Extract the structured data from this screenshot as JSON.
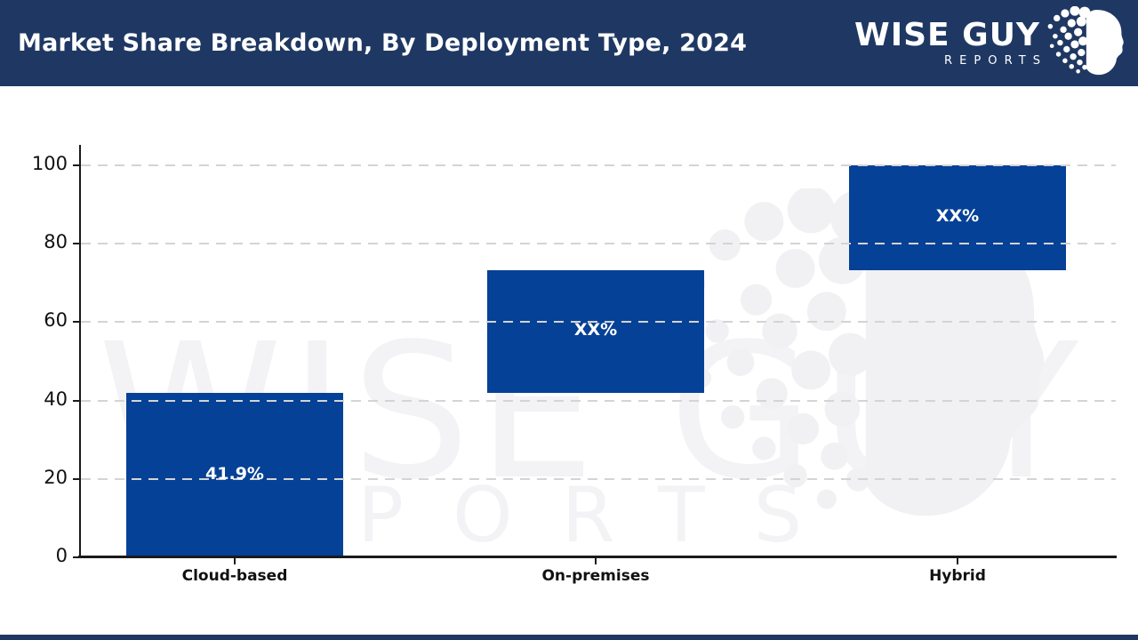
{
  "header": {
    "title": "Market Share Breakdown, By Deployment Type, 2024",
    "bg_color": "#1f3863",
    "logo": {
      "line1": "WISE GUY",
      "line2": "REPORTS"
    }
  },
  "watermark": {
    "line1": "WISE GUY",
    "line2": "REPORTS"
  },
  "chart_data": {
    "type": "bar",
    "subtype": "stacked-waterfall",
    "title": "Market Share Breakdown, By Deployment Type, 2024",
    "categories": [
      "Cloud-based",
      "On-premises",
      "Hybrid"
    ],
    "segments": [
      {
        "category": "Cloud-based",
        "start": 0,
        "end": 41.9,
        "label": "41.9%"
      },
      {
        "category": "On-premises",
        "start": 41.9,
        "end": 73.2,
        "label": "XX%"
      },
      {
        "category": "Hybrid",
        "start": 73.2,
        "end": 100,
        "label": "XX%"
      }
    ],
    "y_ticks": [
      0,
      20,
      40,
      60,
      80,
      100
    ],
    "ylim": [
      0,
      100
    ],
    "bar_color": "#054196",
    "grid": "horizontal-dashed",
    "gridline_color": "#d4d4d4",
    "legend": "none"
  },
  "footer": {
    "bg_color": "#1f3863"
  }
}
